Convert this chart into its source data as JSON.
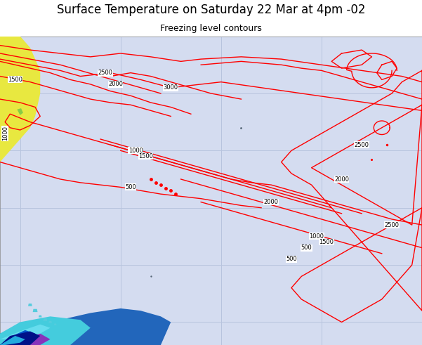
{
  "title": "Surface Temperature on Saturday 22 Mar at 4pm -02",
  "subtitle": "Freezing level contours",
  "title_fontsize": 12,
  "subtitle_fontsize": 9,
  "map_bg": "#d4dcf0",
  "figsize": [
    6.01,
    4.91
  ],
  "dpi": 100,
  "xlim": [
    -42,
    0
  ],
  "ylim": [
    -62,
    -35
  ],
  "grid_color": "#b8c4de",
  "contour_color": "red",
  "lw": 1.0,
  "land_yellow": "#e8e840",
  "land_green": "#88cc44",
  "ice_cyan": "#44ccdd",
  "ice_blue1": "#4499cc",
  "ice_blue2": "#2266bb",
  "ice_blue3": "#1144aa",
  "ice_blue4": "#0033aa",
  "ice_purple": "#8833bb",
  "ice_darkblue": "#001188"
}
